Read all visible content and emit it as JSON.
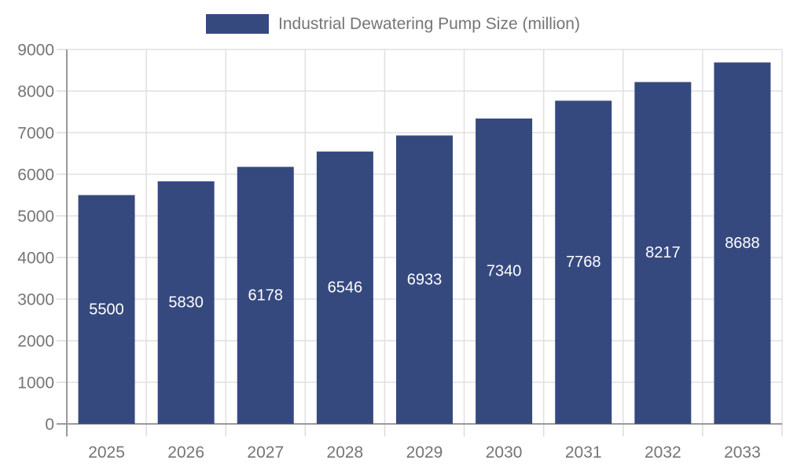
{
  "legend": {
    "label": "Industrial Dewatering Pump Size (million)"
  },
  "chart_data": {
    "type": "bar",
    "title": "Industrial Dewatering Pump Size (million)",
    "series_name": "Industrial Dewatering Pump Size (million)",
    "categories": [
      "2025",
      "2026",
      "2027",
      "2028",
      "2029",
      "2030",
      "2031",
      "2032",
      "2033"
    ],
    "values": [
      5500,
      5830,
      6178,
      6546,
      6933,
      7340,
      7768,
      8217,
      8688
    ],
    "xlabel": "",
    "ylabel": "",
    "ylim": [
      0,
      9000
    ],
    "yticks": [
      0,
      1000,
      2000,
      3000,
      4000,
      5000,
      6000,
      7000,
      8000,
      9000
    ],
    "grid": true,
    "legend_position": "top-center",
    "bar_color": "#36497f",
    "bar_label_color": "#ffffff",
    "grid_color": "#e0e0e0",
    "tick_color": "#dcdcdc",
    "axis_color": "#9a9a9a",
    "tick_label_color": "#757575"
  }
}
